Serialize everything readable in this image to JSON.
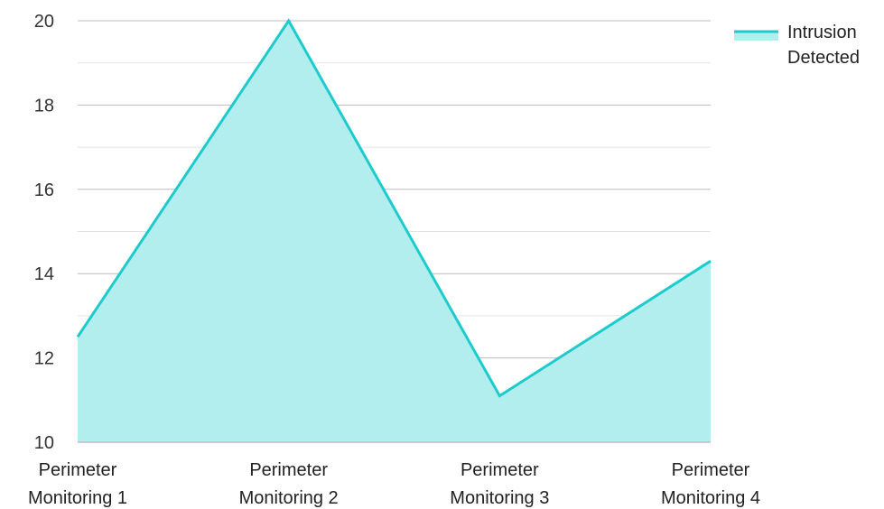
{
  "chart_data": {
    "type": "area",
    "categories": [
      [
        "Perimeter",
        "Monitoring 1"
      ],
      [
        "Perimeter",
        "Monitoring 2"
      ],
      [
        "Perimeter",
        "Monitoring 3"
      ],
      [
        "Perimeter",
        "Monitoring 4"
      ]
    ],
    "series": [
      {
        "name": "Intrusion Detected",
        "values": [
          12.5,
          20,
          11.1,
          14.3
        ],
        "line_color": "#1ecbcc",
        "fill_color": "#b3eeee"
      }
    ],
    "ylim": [
      10,
      20
    ],
    "y_ticks": [
      10,
      12,
      14,
      16,
      18,
      20
    ],
    "grid": true,
    "legend": {
      "position": "top-right",
      "label_lines": [
        "Intrusion",
        "Detected"
      ]
    }
  }
}
